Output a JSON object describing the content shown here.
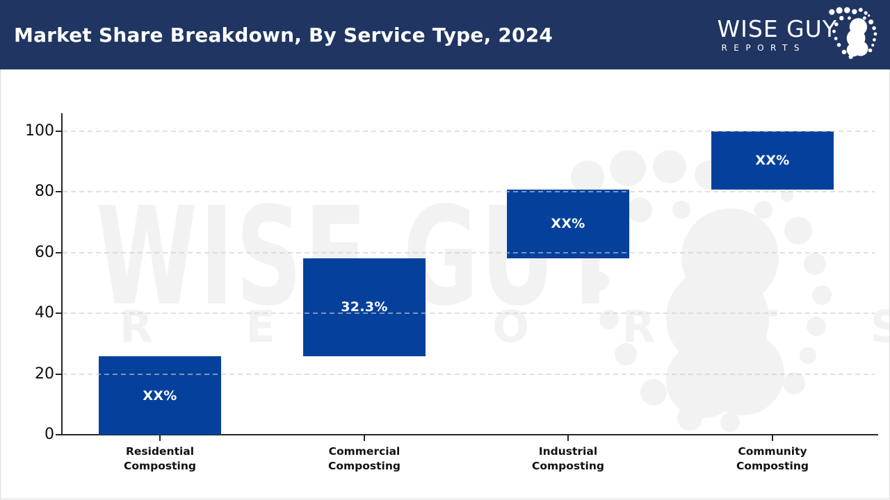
{
  "header": {
    "title": "Market Share Breakdown, By Service Type, 2024",
    "background_color": "#203561",
    "logo": {
      "wordmark": "WISE GUY",
      "subtext": "REPORTS",
      "head_icon": "dotted-head-profile"
    }
  },
  "watermark": {
    "wordmark": "WISE GUY",
    "subtext": "R E P O R T S",
    "head_icon": "dotted-head-profile",
    "color": "#f2f2f2"
  },
  "chart_data": {
    "type": "bar",
    "variant": "waterfall",
    "title": "Market Share Breakdown, By Service Type, 2024",
    "bar_color": "#05419c",
    "grid": "horizontal dashed, drawn over bars",
    "legend_position": "none",
    "xlabel": "",
    "ylabel": "",
    "ylim": [
      0,
      105.8
    ],
    "yticks": [
      0,
      20,
      40,
      60,
      80,
      100
    ],
    "categories": [
      {
        "line1": "Residential",
        "line2": "Composting"
      },
      {
        "line1": "Commercial",
        "line2": "Composting"
      },
      {
        "line1": "Industrial",
        "line2": "Composting"
      },
      {
        "line1": "Community",
        "line2": "Composting"
      }
    ],
    "segments": [
      {
        "category": "Residential Composting",
        "label": "XX%",
        "start": 0,
        "end": 25.8
      },
      {
        "category": "Commercial Composting",
        "label": "32.3%",
        "start": 25.8,
        "end": 58.1
      },
      {
        "category": "Industrial Composting",
        "label": "XX%",
        "start": 58.1,
        "end": 80.7
      },
      {
        "category": "Community Composting",
        "label": "XX%",
        "start": 80.7,
        "end": 100
      }
    ]
  }
}
